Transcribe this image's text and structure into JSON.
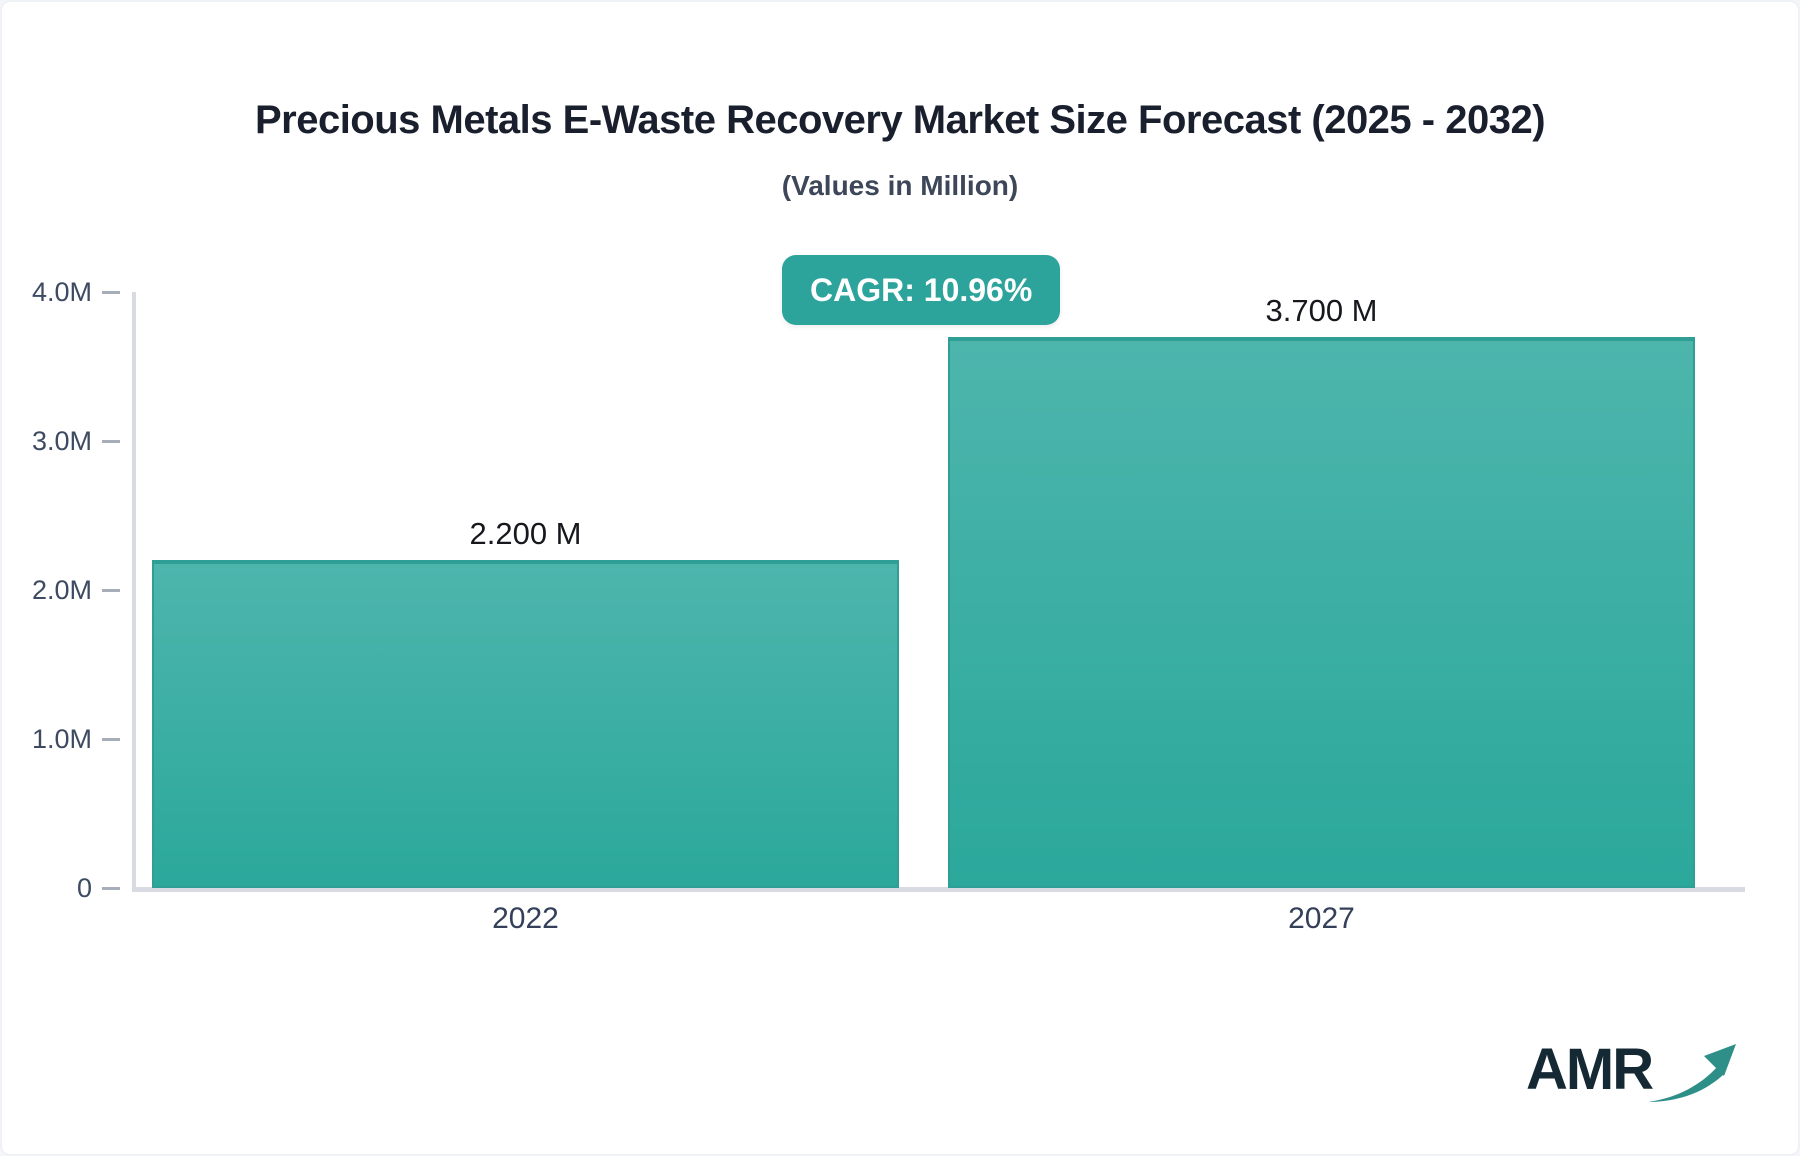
{
  "page": {
    "title": "Precious Metals E-Waste Recovery Market Size Forecast (2025 - 2032)",
    "subtitle": "(Values in Million)",
    "cagr_badge": "CAGR: 10.96%"
  },
  "chart_data": {
    "type": "bar",
    "title": "Precious Metals E-Waste Recovery Market Size Forecast (2025 - 2032)",
    "subtitle": "(Values in Million)",
    "unit": "Million",
    "categories": [
      "2022",
      "2027"
    ],
    "values": [
      2.2,
      3.7
    ],
    "value_labels": [
      "2.200 M",
      "3.700 M"
    ],
    "ylim": [
      0,
      4.0
    ],
    "yticks": [
      {
        "label": "4.0M",
        "value": 4.0
      },
      {
        "label": "3.0M",
        "value": 3.0
      },
      {
        "label": "2.0M",
        "value": 2.0
      },
      {
        "label": "1.0M",
        "value": 1.0
      },
      {
        "label": "0",
        "value": 0
      }
    ],
    "grid": false,
    "legend": false,
    "annotations": [
      {
        "text": "CAGR: 10.96%",
        "position": "top-center"
      }
    ],
    "bar_color_top": "#4db5ac",
    "bar_color_bottom": "#2ba89b",
    "bar_border_color": "#2f9e94"
  },
  "branding": {
    "logo_text": "AMR",
    "logo_color": "#152934",
    "arrow_color": "#2e8f88",
    "arrow_icon": "trending-up-arrow"
  },
  "colors": {
    "accent_teal": "#2ca49b",
    "axis_line": "#d8dbe2",
    "tick_dash": "#a7aeb9",
    "tick_label": "#3d4a61",
    "title_text": "#1a1f2e",
    "subtitle_text": "#3d4759",
    "value_label": "#16181d",
    "background": "#ffffff"
  }
}
